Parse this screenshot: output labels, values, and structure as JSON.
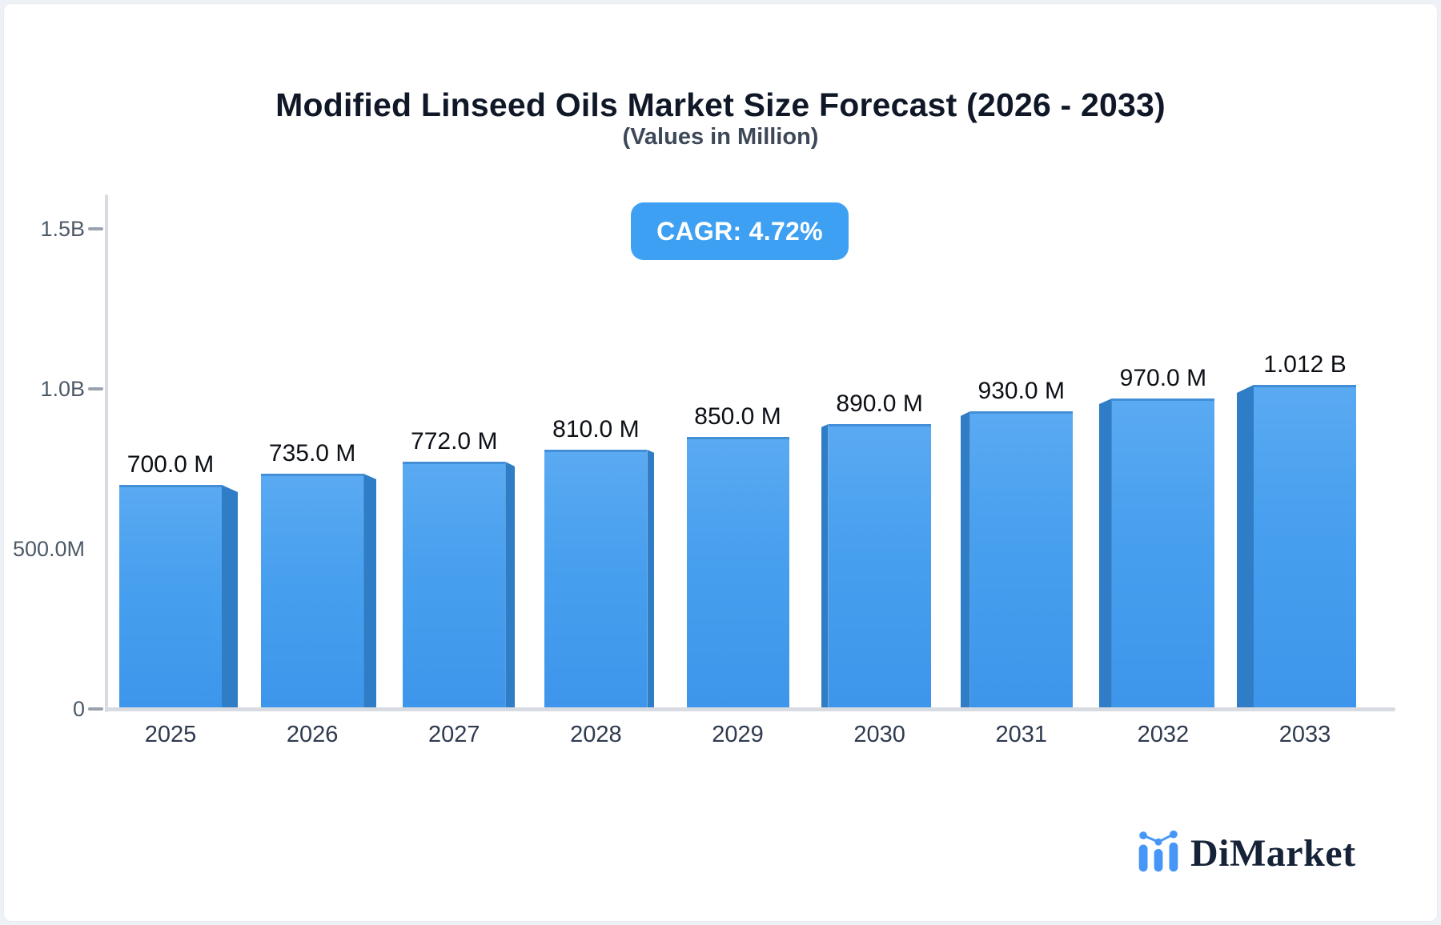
{
  "header": {
    "title": "Modified Linseed Oils Market Size Forecast (2026 - 2033)",
    "subtitle": "(Values in Million)"
  },
  "badge": {
    "label": "CAGR: 4.72%",
    "background": "#3da0f2",
    "text_color": "#ffffff"
  },
  "chart_data": {
    "type": "bar",
    "title": "Modified Linseed Oils Market Size Forecast (2026 - 2033)",
    "subtitle": "(Values in Million)",
    "cagr_percent": 4.72,
    "categories": [
      "2025",
      "2026",
      "2027",
      "2028",
      "2029",
      "2030",
      "2031",
      "2032",
      "2033"
    ],
    "values_million": [
      700,
      735,
      772,
      810,
      850,
      890,
      930,
      970,
      1012
    ],
    "value_labels": [
      "700.0 M",
      "735.0 M",
      "772.0 M",
      "810.0 M",
      "850.0 M",
      "890.0 M",
      "930.0 M",
      "970.0 M",
      "1.012 B"
    ],
    "xlabel": "",
    "ylabel": "",
    "ylim_million": [
      0,
      1500
    ],
    "y_ticks": [
      {
        "label": "1.5B",
        "value_million": 1500,
        "dash": true
      },
      {
        "label": "1.0B",
        "value_million": 1000,
        "dash": true
      },
      {
        "label": "500.0M",
        "value_million": 500,
        "dash": false
      },
      {
        "label": "0",
        "value_million": 0,
        "dash": true
      }
    ],
    "grid": false,
    "legend": "none",
    "effect": "3d-perspective-center-vanishing",
    "bar_color_top": "#5aaaf2",
    "bar_color_bottom": "#3e96ec",
    "bar_side_color": "#2e7dc6",
    "axis_color": "#d8dce2"
  },
  "footer": {
    "brand": "DiMarket",
    "logo_icon": "bar-chart-logo-icon",
    "brand_color": "#152238",
    "logo_accent": "#4596f7"
  }
}
